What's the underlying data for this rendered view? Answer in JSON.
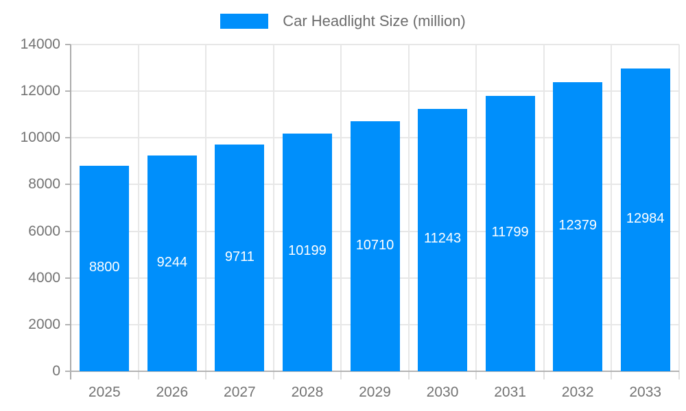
{
  "legend": {
    "label": "Car Headlight Size (million)"
  },
  "colors": {
    "bar": "#008FFB",
    "grid": "#e7e7e7",
    "y_axis_line": "#acacac",
    "x_axis_line": "#b3b3b3",
    "tick_label": "#737373",
    "value_label": "#ffffff",
    "legend_text": "#6b6b6b"
  },
  "chart_data": {
    "type": "bar",
    "title": "Car Headlight Size (million)",
    "categories": [
      "2025",
      "2026",
      "2027",
      "2028",
      "2029",
      "2030",
      "2031",
      "2032",
      "2033"
    ],
    "values": [
      8800,
      9244,
      9711,
      10199,
      10710,
      11243,
      11799,
      12379,
      12984
    ],
    "xlabel": "",
    "ylabel": "",
    "ylim": [
      0,
      14000
    ],
    "ytick_step": 2000,
    "yticks": [
      0,
      2000,
      4000,
      6000,
      8000,
      10000,
      12000,
      14000
    ],
    "grid": true,
    "legend_position": "top",
    "value_labels": "inside-center"
  }
}
